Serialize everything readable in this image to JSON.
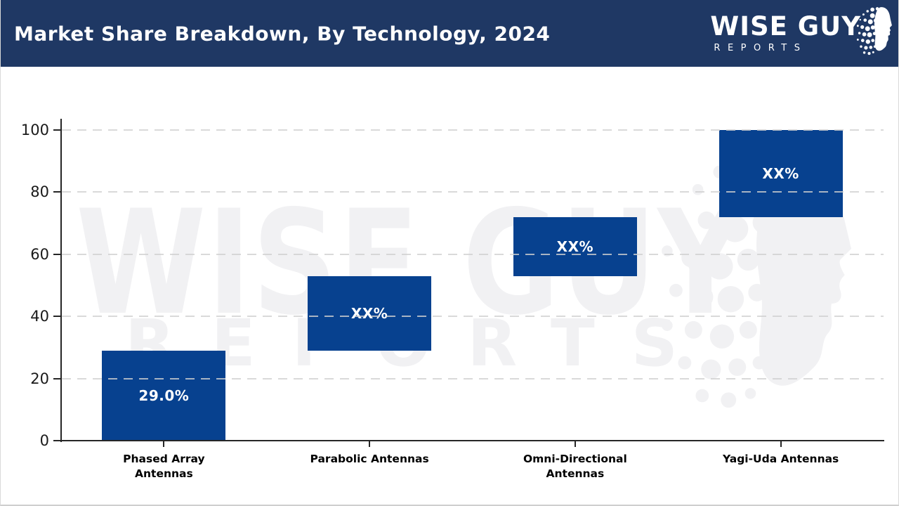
{
  "header": {
    "title": "Market Share Breakdown, By Technology, 2024",
    "logo": {
      "line1": "WISE GUY",
      "line2": "REPORTS"
    }
  },
  "watermark": {
    "line1": "WISE GUY",
    "line2": "REPORTS"
  },
  "colors": {
    "header_bg": "#1f3864",
    "bar_blue": "#07418f",
    "axis": "#262626",
    "gridline": "#d9d9d9",
    "title_text": "#ffffff",
    "watermark_gray": "#f1f1f3"
  },
  "chart_data": {
    "type": "bar",
    "subtype": "waterfall",
    "title": "Market Share Breakdown, By Technology, 2024",
    "categories": [
      "Phased Array Antennas",
      "Parabolic Antennas",
      "Omni-Directional Antennas",
      "Yagi-Uda Antennas"
    ],
    "category_lines": [
      [
        "Phased Array",
        "Antennas"
      ],
      [
        "Parabolic Antennas"
      ],
      [
        "Omni-Directional",
        "Antennas"
      ],
      [
        "Yagi-Uda Antennas"
      ]
    ],
    "segments": [
      {
        "category": "Phased Array Antennas",
        "start": 0,
        "end": 29,
        "label": "29.0%"
      },
      {
        "category": "Parabolic Antennas",
        "start": 29,
        "end": 53,
        "label": "XX%"
      },
      {
        "category": "Omni-Directional Antennas",
        "start": 53,
        "end": 72,
        "label": "XX%"
      },
      {
        "category": "Yagi-Uda Antennas",
        "start": 72,
        "end": 100,
        "label": "XX%"
      }
    ],
    "xlabel": "",
    "ylabel": "",
    "ylim": [
      0,
      100
    ],
    "yticks": [
      0,
      20,
      40,
      60,
      80,
      100
    ],
    "grid": "horizontal-dashed-over-bars",
    "legend": "none"
  }
}
